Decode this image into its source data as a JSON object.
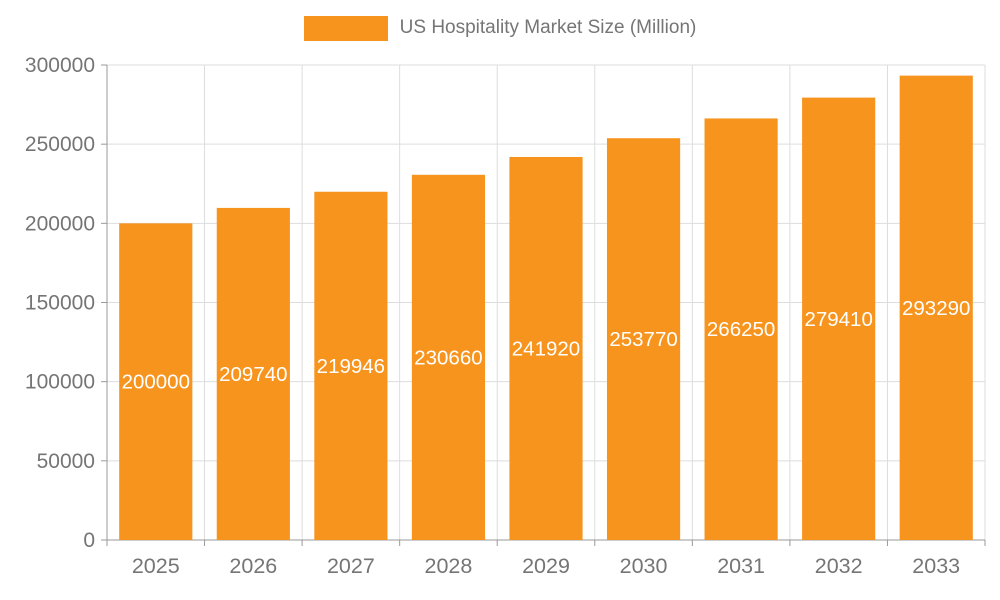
{
  "legend": {
    "label": "US Hospitality Market Size (Million)"
  },
  "chart_data": {
    "type": "bar",
    "title": "US Hospitality Market Size (Million)",
    "xlabel": "",
    "ylabel": "",
    "categories": [
      "2025",
      "2026",
      "2027",
      "2028",
      "2029",
      "2030",
      "2031",
      "2032",
      "2033"
    ],
    "values": [
      200000,
      209740,
      219946,
      230660,
      241920,
      253770,
      266250,
      279410,
      293290
    ],
    "ylim": [
      0,
      300000
    ],
    "yticks": [
      0,
      50000,
      100000,
      150000,
      200000,
      250000,
      300000
    ],
    "grid": true,
    "legend_position": "top",
    "bar_color": "#f7941e",
    "bar_label_color": "#ffffff",
    "axis_color": "#999999",
    "grid_color": "#dddddd",
    "tick_label_color": "#757575"
  }
}
